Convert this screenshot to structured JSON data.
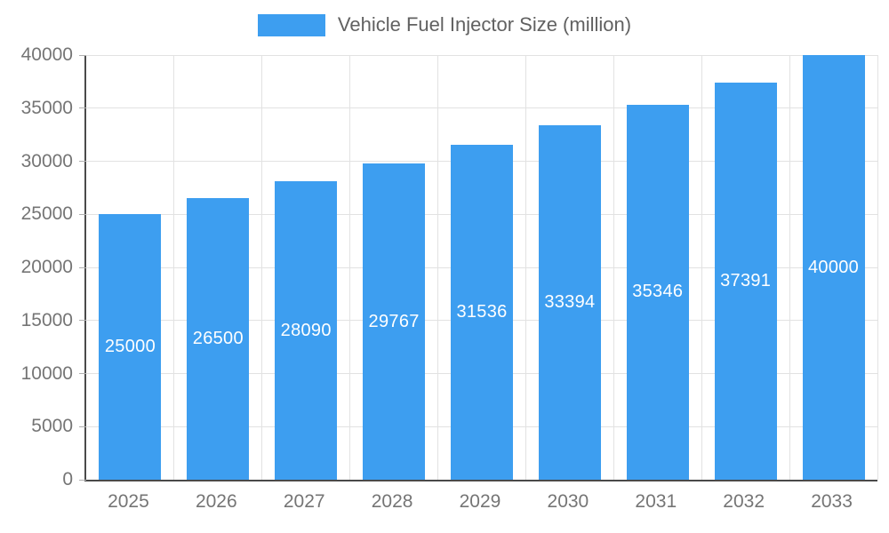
{
  "legend": {
    "title": "Vehicle Fuel Injector Size (million)"
  },
  "chart_data": {
    "type": "bar",
    "title": "Vehicle Fuel Injector Size (million)",
    "categories": [
      "2025",
      "2026",
      "2027",
      "2028",
      "2029",
      "2030",
      "2031",
      "2032",
      "2033"
    ],
    "values": [
      25000,
      26500,
      28090,
      29767,
      31536,
      33394,
      35346,
      37391,
      40000
    ],
    "xlabel": "",
    "ylabel": "",
    "ylim": [
      0,
      40000
    ],
    "yticks": [
      0,
      5000,
      10000,
      15000,
      20000,
      25000,
      30000,
      35000,
      40000
    ],
    "grid": true,
    "legend_position": "top-center",
    "bar_color": "#3D9EF0",
    "value_label_color": "#ffffff",
    "axis_label_color": "#757575",
    "gridline_color": "#e2e2e2",
    "axis_line_color": "#4a4a4a"
  }
}
